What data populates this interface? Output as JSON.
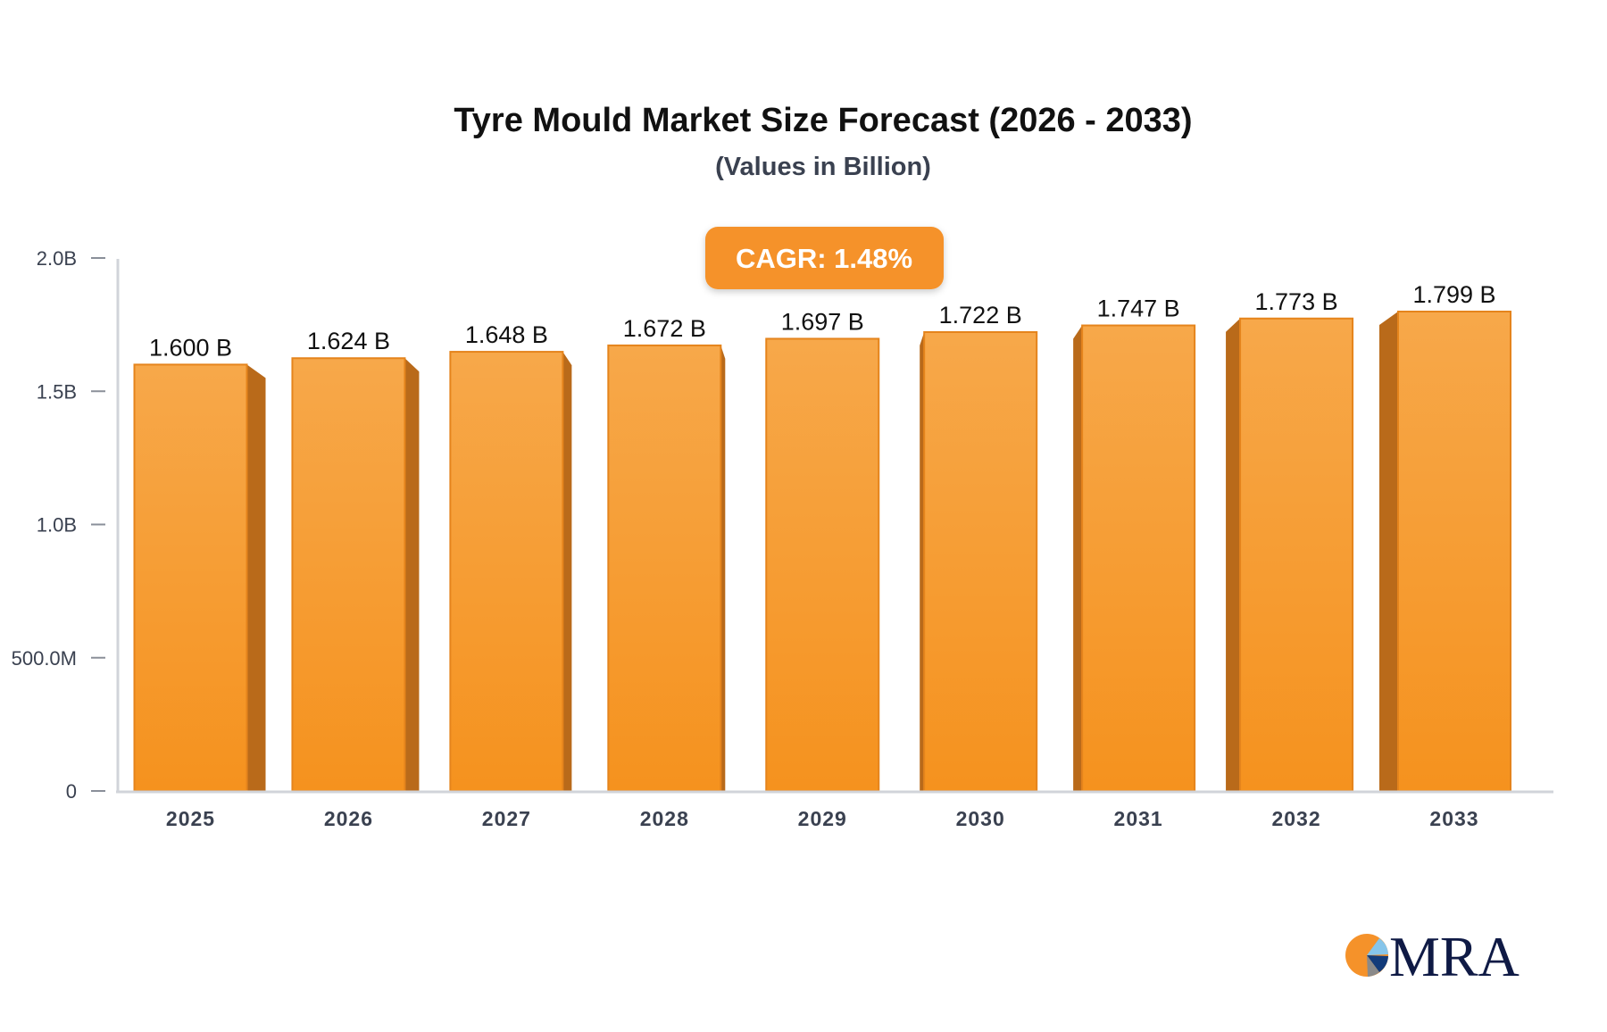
{
  "chart_data": {
    "type": "bar",
    "title": "Tyre Mould Market Size Forecast (2026 - 2033)",
    "subtitle": "(Values in Billion)",
    "categories": [
      "2025",
      "2026",
      "2027",
      "2028",
      "2029",
      "2030",
      "2031",
      "2032",
      "2033"
    ],
    "values": [
      1.6,
      1.624,
      1.648,
      1.672,
      1.697,
      1.722,
      1.747,
      1.773,
      1.799
    ],
    "data_labels": [
      "1.600 B",
      "1.624 B",
      "1.648 B",
      "1.672 B",
      "1.697 B",
      "1.722 B",
      "1.747 B",
      "1.773 B",
      "1.799 B"
    ],
    "unit": "Billion",
    "ylim": [
      0,
      2.0
    ],
    "yticks": [
      {
        "value": 0,
        "label": "0"
      },
      {
        "value": 0.5,
        "label": "500.0M"
      },
      {
        "value": 1.0,
        "label": "1.0B"
      },
      {
        "value": 1.5,
        "label": "1.5B"
      },
      {
        "value": 2.0,
        "label": "2.0B"
      }
    ],
    "grid": false,
    "annotation": "CAGR: 1.48%",
    "colors": {
      "bar_front": "#f7a84a",
      "bar_bottom": "#f5921e",
      "bar_side": "#b96a1a",
      "badge": "#f5922a"
    }
  },
  "logo": {
    "text": "MRA"
  }
}
